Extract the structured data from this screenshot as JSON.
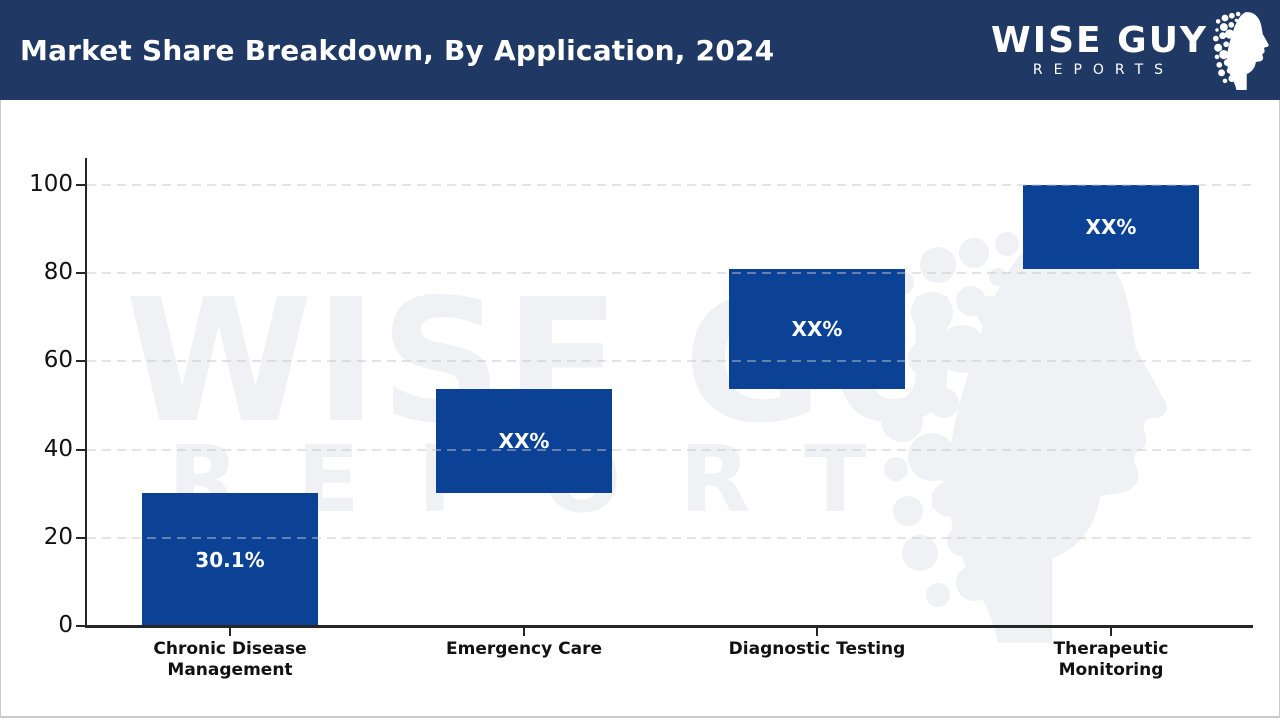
{
  "header": {
    "title": "Market Share Breakdown, By Application, 2024",
    "bg_color": "#203864",
    "logo": {
      "wordmark": "WISE GUY",
      "sub": "REPORTS"
    }
  },
  "watermark": {
    "line1": "WISE GUY",
    "line2": "REPORTS"
  },
  "chart_data": {
    "type": "bar",
    "subtype": "waterfall",
    "title": "Market Share Breakdown, By Application, 2024",
    "categories": [
      "Chronic Disease Management",
      "Emergency Care",
      "Diagnostic Testing",
      "Therapeutic Monitoring"
    ],
    "category_label_lines": [
      [
        "Chronic Disease",
        "Management"
      ],
      [
        "Emergency Care"
      ],
      [
        "Diagnostic Testing"
      ],
      [
        "Therapeutic",
        "Monitoring"
      ]
    ],
    "series": [
      {
        "name": "Market Share (%)",
        "segments": [
          {
            "category": "Chronic Disease Management",
            "start": 0,
            "end": 30.1,
            "label": "30.1%"
          },
          {
            "category": "Emergency Care",
            "start": 30.1,
            "end": 53.7,
            "label": "XX%"
          },
          {
            "category": "Diagnostic Testing",
            "start": 53.7,
            "end": 81.0,
            "label": "XX%"
          },
          {
            "category": "Therapeutic Monitoring",
            "start": 81.0,
            "end": 100,
            "label": "XX%"
          }
        ]
      }
    ],
    "ylim": [
      0,
      100
    ],
    "yticks": [
      0,
      20,
      40,
      60,
      80,
      100
    ],
    "xlabel": "",
    "ylabel": "",
    "grid": "horizontal-dashed-over-bars",
    "legend": "none",
    "bar_color": "#0b4296",
    "grid_color": "#c6c6c6",
    "axis_color": "#262626"
  }
}
